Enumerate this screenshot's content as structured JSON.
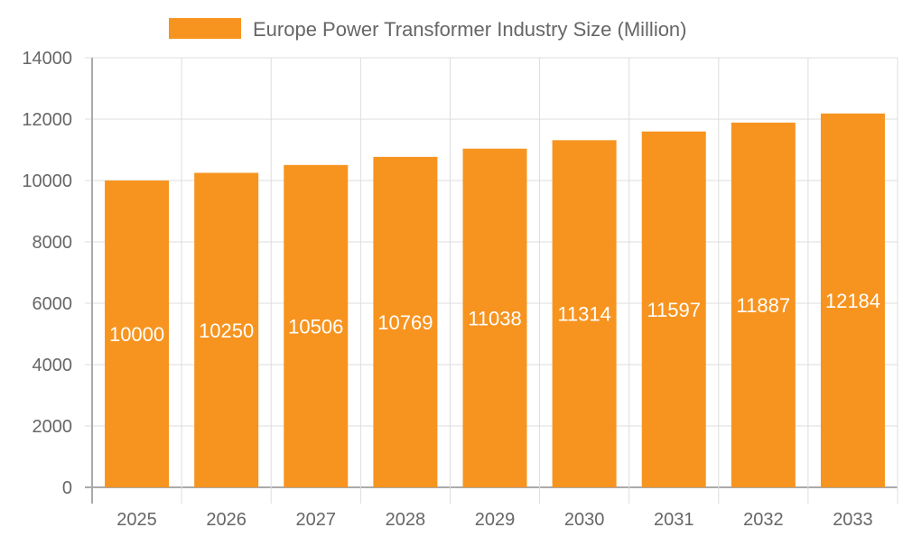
{
  "chart_data": {
    "type": "bar",
    "title": "",
    "xlabel": "",
    "ylabel": "",
    "categories": [
      "2025",
      "2026",
      "2027",
      "2028",
      "2029",
      "2030",
      "2031",
      "2032",
      "2033"
    ],
    "series": [
      {
        "name": "Europe Power Transformer Industry Size (Million)",
        "values": [
          10000,
          10250,
          10506,
          10769,
          11038,
          11314,
          11597,
          11887,
          12184
        ],
        "color": "#F7941F"
      }
    ],
    "ylim": [
      0,
      14000
    ],
    "yticks": [
      0,
      2000,
      4000,
      6000,
      8000,
      10000,
      12000,
      14000
    ],
    "grid": true,
    "legend_position": "top-center",
    "data_labels": true
  }
}
